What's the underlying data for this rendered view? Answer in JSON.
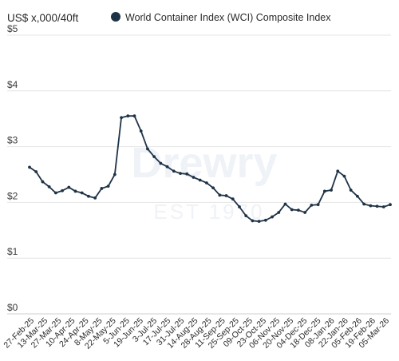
{
  "colors": {
    "series": "#1f3347",
    "grid": "#e4e4e4",
    "text": "#3b3b3b",
    "watermark": "#dfe6ee"
  },
  "watermark": {
    "brand": "Drewry",
    "est": "EST 1970"
  },
  "chart_data": {
    "type": "line",
    "ylabel": "US$ x,000/40ft",
    "ylim": [
      0,
      5
    ],
    "yticks": [
      "$0",
      "$1",
      "$2",
      "$3",
      "$4",
      "$5"
    ],
    "grid": true,
    "legend": "top",
    "x_tick_labels": [
      "27-Feb-25",
      "13-Mar-25",
      "27-Mar-25",
      "10-Apr-25",
      "24-Apr-25",
      "8-May-25",
      "22-May-25",
      "5-Jun-25",
      "19-Jun-25",
      "3-Jul-25",
      "17-Jul-25",
      "31-Jul-25",
      "14-Aug-25",
      "28-Aug-25",
      "11-Sep-25",
      "25-Sep-25",
      "09-Oct-25",
      "23-Oct-25",
      "06-Nov-25",
      "20-Nov-25",
      "04-Dec-25",
      "18-Dec-25",
      "08-Jan-26",
      "22-Jan-26",
      "05-Feb-26",
      "19-Feb-26",
      "05-Mar-26"
    ],
    "series": [
      {
        "name": "World Container Index (WCI) Composite Index",
        "values": [
          2.63,
          2.55,
          2.37,
          2.28,
          2.17,
          2.21,
          2.27,
          2.2,
          2.17,
          2.11,
          2.08,
          2.25,
          2.29,
          2.5,
          3.52,
          3.55,
          3.55,
          3.28,
          2.96,
          2.82,
          2.7,
          2.64,
          2.56,
          2.52,
          2.51,
          2.45,
          2.4,
          2.35,
          2.26,
          2.13,
          2.12,
          2.06,
          1.92,
          1.76,
          1.67,
          1.66,
          1.68,
          1.74,
          1.82,
          1.97,
          1.87,
          1.86,
          1.82,
          1.95,
          1.96,
          2.2,
          2.22,
          2.56,
          2.47,
          2.22,
          2.11,
          1.97,
          1.94,
          1.93,
          1.92,
          1.96
        ]
      }
    ]
  }
}
